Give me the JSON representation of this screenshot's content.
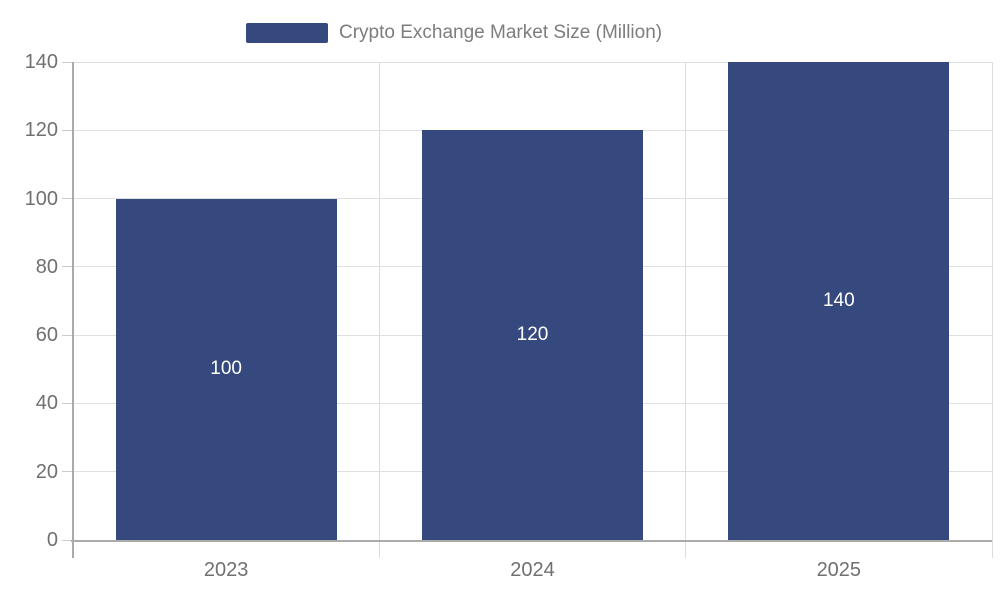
{
  "legend": {
    "label": "Crypto Exchange Market Size (Million)"
  },
  "chart_data": {
    "type": "bar",
    "title": "Crypto Exchange Market Size (Million)",
    "categories": [
      "2023",
      "2024",
      "2025"
    ],
    "values": [
      100,
      120,
      140
    ],
    "series": [
      {
        "name": "Crypto Exchange Market Size (Million)",
        "values": [
          100,
          120,
          140
        ]
      }
    ],
    "xlabel": "",
    "ylabel": "",
    "ylim": [
      0,
      140
    ],
    "yticks": [
      0,
      20,
      40,
      60,
      80,
      100,
      120,
      140
    ],
    "grid": true,
    "legend_position": "top",
    "value_labels_position": "inside-center"
  },
  "colors": {
    "bar": "#36497E",
    "value_label": "#ffffff",
    "axis_text": "#707070",
    "legend_text": "#7d7d7d",
    "grid_line": "#e0e0e0",
    "axis_line": "#aaaaaa",
    "background": "#ffffff"
  }
}
